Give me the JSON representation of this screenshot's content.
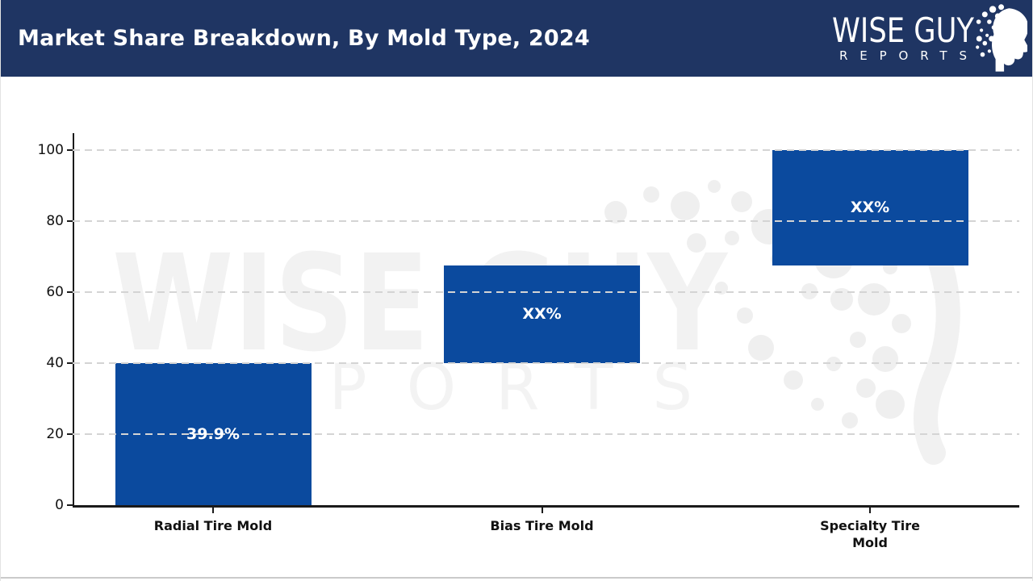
{
  "header": {
    "title": "Market Share Breakdown, By Mold Type, 2024",
    "logo": {
      "line1": "WISE GUY",
      "line2": "REPORTS"
    }
  },
  "watermark": {
    "line1": "WISE GUY",
    "line2": "REPORTS"
  },
  "chart_data": {
    "type": "bar",
    "subtype": "waterfall-stacked-breakdown",
    "title": "Market Share Breakdown, By Mold Type, 2024",
    "xlabel": "",
    "ylabel": "",
    "ylim": [
      0,
      105
    ],
    "yticks": [
      0,
      20,
      40,
      60,
      80,
      100
    ],
    "grid": "horizontal-dashed",
    "legend": "none",
    "categories": [
      "Radial Tire Mold",
      "Bias Tire Mold",
      "Specialty Tire Mold"
    ],
    "segments": [
      {
        "category_lines": [
          "Radial Tire Mold"
        ],
        "start": 0,
        "end": 39.9,
        "label": "39.9%"
      },
      {
        "category_lines": [
          "Bias Tire Mold"
        ],
        "start": 39.9,
        "end": 67.5,
        "label": "XX%"
      },
      {
        "category_lines": [
          "Specialty Tire",
          "Mold"
        ],
        "start": 67.5,
        "end": 100,
        "label": "XX%"
      }
    ]
  },
  "colors": {
    "header_bg": "#1f3563",
    "bar": "#0b4a9e",
    "bar_label": "#ffffff",
    "axis": "#1a1a1a",
    "grid": "#d4d4d4",
    "tick_label": "#111111",
    "watermark": "#f1f1f1"
  }
}
